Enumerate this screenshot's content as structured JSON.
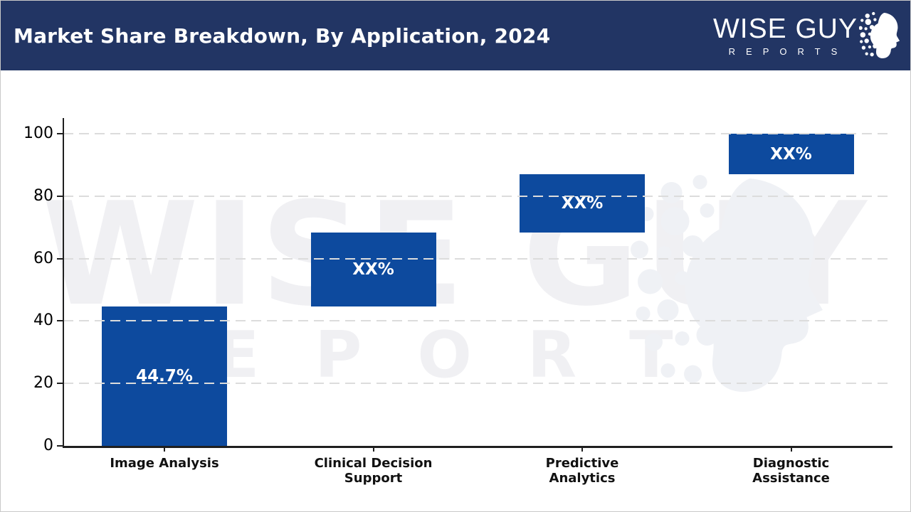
{
  "header": {
    "title": "Market Share Breakdown, By Application, 2024",
    "bg_color": "#223564",
    "logo": {
      "wordmark": "WISE GUY",
      "subtext": "REPORTS",
      "face_icon": "dotted-head-profile"
    }
  },
  "watermark": {
    "line1": "WISE GUY",
    "line2": "REPORTS",
    "face_icon": "dotted-head-profile"
  },
  "chart_data": {
    "type": "bar",
    "subtype": "waterfall-floating-segments",
    "title": "Market Share Breakdown, By Application, 2024",
    "categories": [
      "Image Analysis",
      "Clinical Decision Support",
      "Predictive Analytics",
      "Diagnostic Assistance"
    ],
    "series": [
      {
        "name": "Market share (%)",
        "segments": [
          {
            "category": "Image Analysis",
            "start": 0,
            "end": 44.7,
            "label": "44.7%"
          },
          {
            "category": "Clinical Decision Support",
            "start": 44.7,
            "end": 68.3,
            "label": "XX%"
          },
          {
            "category": "Predictive Analytics",
            "start": 68.3,
            "end": 87.0,
            "label": "XX%"
          },
          {
            "category": "Diagnostic Assistance",
            "start": 87.0,
            "end": 100,
            "label": "XX%"
          }
        ]
      }
    ],
    "xlabel": "",
    "ylabel": "",
    "ylim": [
      0,
      100
    ],
    "yticks": [
      0,
      20,
      40,
      60,
      80,
      100
    ],
    "grid": "horizontal-dashed",
    "legend": "none",
    "colors": {
      "bar": "#0d4a9e",
      "bar_label": "#ffffff",
      "axis": "#1f1f1f",
      "tick_label": "#000000",
      "gridline": "#dcdcdc"
    }
  }
}
